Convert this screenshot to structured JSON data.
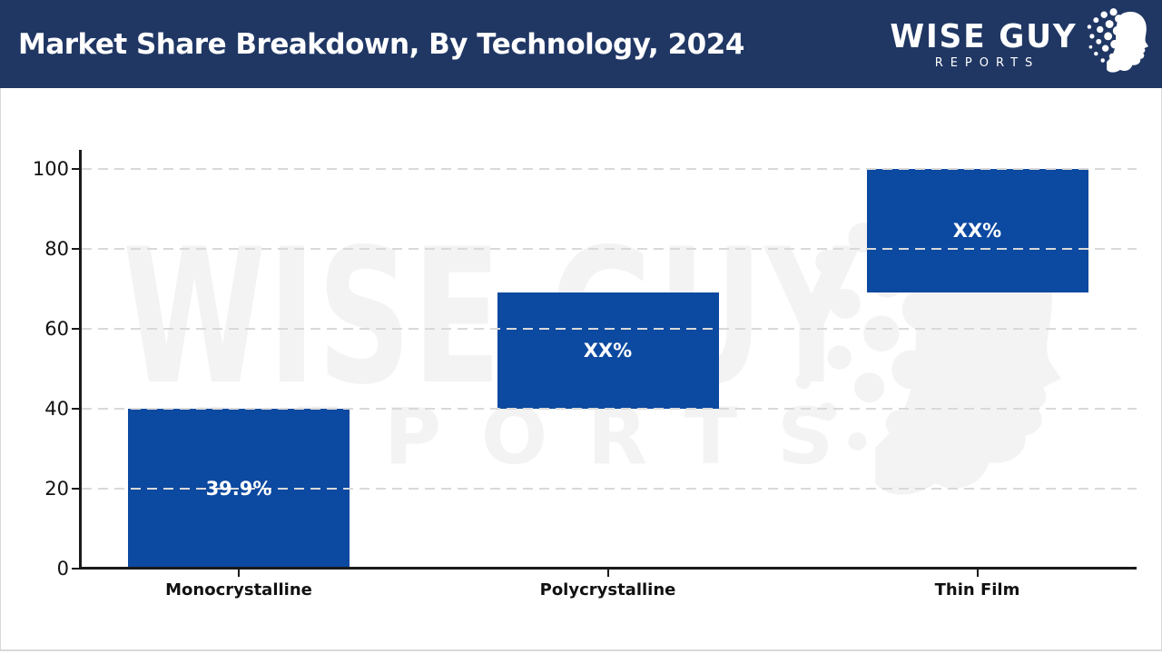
{
  "header": {
    "title": "Market Share Breakdown, By Technology, 2024",
    "logo": {
      "wordmark": "WISE GUY",
      "subtext": "REPORTS"
    }
  },
  "watermark": {
    "wordmark": "WISE GUY",
    "subtext": "REPORTS"
  },
  "chart_data": {
    "type": "bar",
    "variant": "waterfall",
    "title": "Market Share Breakdown, By Technology, 2024",
    "categories": [
      "Monocrystalline",
      "Polycrystalline",
      "Thin Film"
    ],
    "segments": [
      {
        "category": "Monocrystalline",
        "start": 0,
        "end": 39.9,
        "label": "39.9%"
      },
      {
        "category": "Polycrystalline",
        "start": 40,
        "end": 69,
        "label": "XX%"
      },
      {
        "category": "Thin Film",
        "start": 69,
        "end": 100,
        "label": "XX%"
      }
    ],
    "yticks": [
      0,
      20,
      40,
      60,
      80,
      100
    ],
    "ylim": [
      0,
      105
    ],
    "xlabel": "",
    "ylabel": "",
    "legend": "none",
    "grid": "horizontal-dashed",
    "bar_color": "#0c49a0",
    "bar_label_color": "#ffffff",
    "axis_color": "#1a1a1a",
    "header_color": "#203764"
  }
}
